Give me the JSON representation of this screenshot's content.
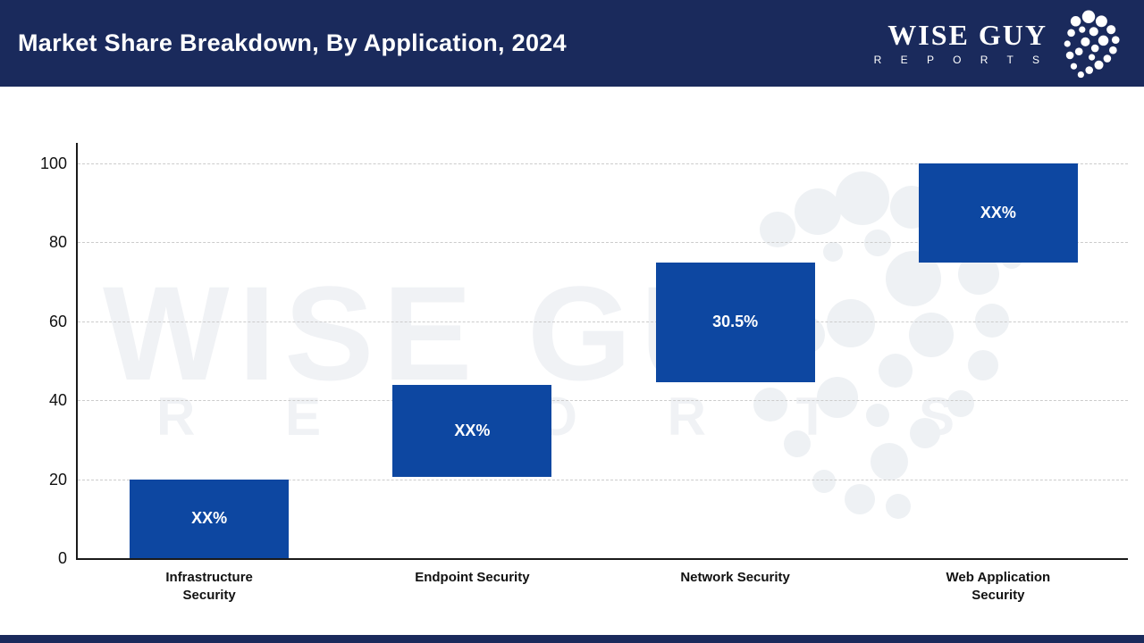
{
  "header": {
    "title": "Market Share Breakdown, By Application, 2024",
    "logo": {
      "line1": "WISE GUY",
      "line2": "R E P O R T S"
    }
  },
  "watermark": {
    "line1": "WISE GU",
    "line2": "R E P O R T S"
  },
  "colors": {
    "header_bg": "#1a2a5c",
    "bar": "#0d47a1",
    "grid": "#cccccc",
    "axis": "#1a1a1a",
    "bar_label_text": "#ffffff"
  },
  "chart_data": {
    "type": "bar",
    "subtype": "waterfall",
    "title": "Market Share Breakdown, By Application, 2024",
    "categories": [
      "Infrastructure Security",
      "Endpoint Security",
      "Network Security",
      "Web Application Security"
    ],
    "bars": [
      {
        "category": "Infrastructure Security",
        "start": 0,
        "end": 20,
        "label": "XX%"
      },
      {
        "category": "Endpoint Security",
        "start": 20.5,
        "end": 44,
        "label": "XX%"
      },
      {
        "category": "Network Security",
        "start": 44.5,
        "end": 75,
        "label": "30.5%"
      },
      {
        "category": "Web Application Security",
        "start": 75,
        "end": 100,
        "label": "XX%"
      }
    ],
    "xlabel": "",
    "ylabel": "",
    "ylim": [
      0,
      100
    ],
    "yticks": [
      0,
      20,
      40,
      60,
      80,
      100
    ],
    "grid": "horizontal-dashed",
    "legend": false
  }
}
